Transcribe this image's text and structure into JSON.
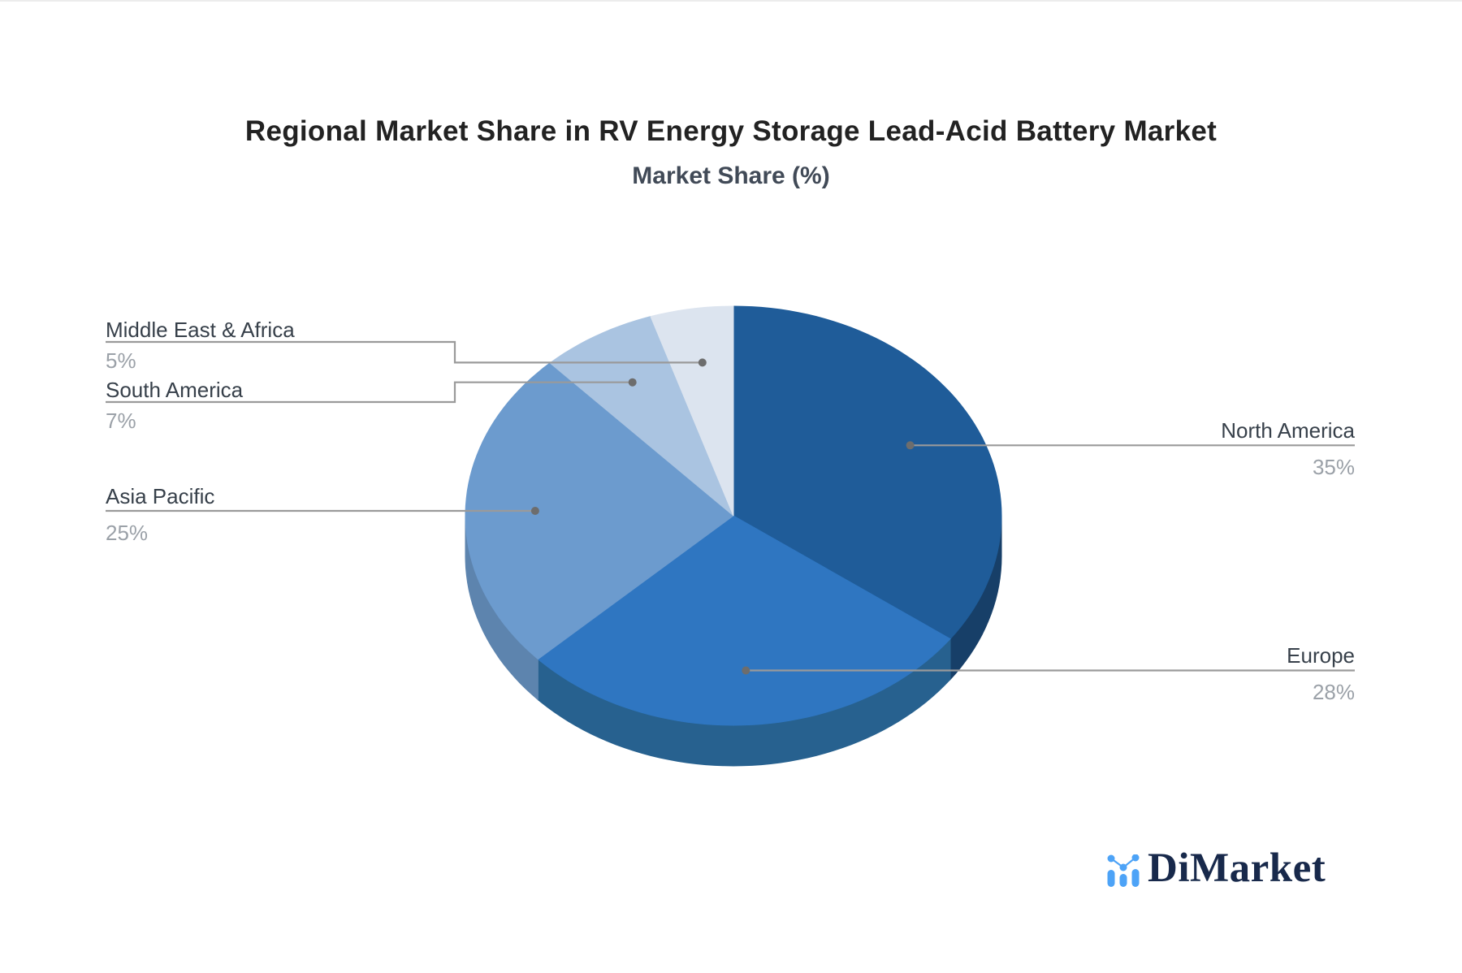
{
  "header": {
    "title": "Regional Market Share in RV Energy Storage Lead-Acid Battery Market",
    "subtitle": "Market Share (%)"
  },
  "chart_data": {
    "type": "pie",
    "title": "Regional Market Share in RV Energy Storage Lead-Acid Battery Market",
    "subtitle": "Market Share (%)",
    "unit": "percent",
    "style": "3d-pie",
    "start_angle": "12-oclock",
    "direction": "clockwise",
    "legend_position": "callout-labels",
    "slices": [
      {
        "label": "North America",
        "value": 35,
        "display": "35%",
        "color": "#1F5C99",
        "side_color": "#173F68",
        "label_side": "right"
      },
      {
        "label": "Europe",
        "value": 28,
        "display": "28%",
        "color": "#2F76C1",
        "side_color": "#27618F",
        "label_side": "right"
      },
      {
        "label": "Asia Pacific",
        "value": 25,
        "display": "25%",
        "color": "#6C9BCE",
        "side_color": "#5D84AE",
        "label_side": "left"
      },
      {
        "label": "South America",
        "value": 7,
        "display": "7%",
        "color": "#AAC4E1",
        "side_color": "#8FA8C4",
        "label_side": "left"
      },
      {
        "label": "Middle East & Africa",
        "value": 5,
        "display": "5%",
        "color": "#DCE4EF",
        "side_color": "#B8C3D4",
        "label_side": "left"
      }
    ]
  },
  "branding": {
    "logo_text": "DiMarket",
    "logo_icon": "bar-line-chart-icon",
    "logo_text_color": "#18294B",
    "logo_icon_color": "#4DA3F7"
  }
}
